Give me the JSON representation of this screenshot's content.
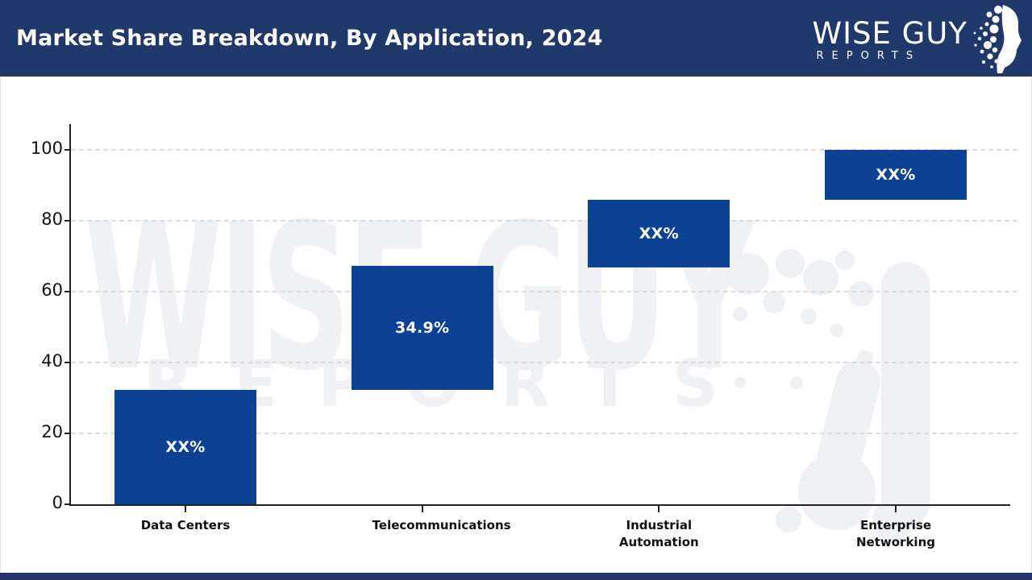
{
  "header": {
    "title": "Market Share Breakdown, By Application, 2024",
    "logo": {
      "name": "WISE GUY",
      "subtitle": "REPORTS"
    }
  },
  "watermark": {
    "line1": "WISE GUY",
    "line2": "REPORTS"
  },
  "colors": {
    "header_navy": "#20386a",
    "bar_blue": "#0d4194",
    "grid_gray": "#dcdcdc",
    "axis_dark": "#222222",
    "watermark_gray": "#f0f1f4"
  },
  "chart_data": {
    "type": "bar",
    "subtype": "waterfall",
    "title": "Market Share Breakdown, By Application, 2024",
    "xlabel": "",
    "ylabel": "",
    "ylim": [
      0,
      100
    ],
    "yticks": [
      0,
      20,
      40,
      60,
      80,
      100
    ],
    "grid": "horizontal-dashed",
    "legend": "none",
    "categories": [
      "Data Centers",
      "Telecommunications",
      "Industrial Automation",
      "Enterprise Networking"
    ],
    "segments": [
      {
        "category": "Data Centers",
        "start": 0,
        "end": 32.2,
        "value": 32.2,
        "label": "XX%"
      },
      {
        "category": "Telecommunications",
        "start": 32.3,
        "end": 67.2,
        "value": 34.9,
        "label": "34.9%"
      },
      {
        "category": "Industrial Automation",
        "start": 66.9,
        "end": 85.8,
        "value": 18.9,
        "label": "XX%"
      },
      {
        "category": "Enterprise Networking",
        "start": 85.8,
        "end": 99.9,
        "value": 14.1,
        "label": "XX%"
      }
    ]
  }
}
